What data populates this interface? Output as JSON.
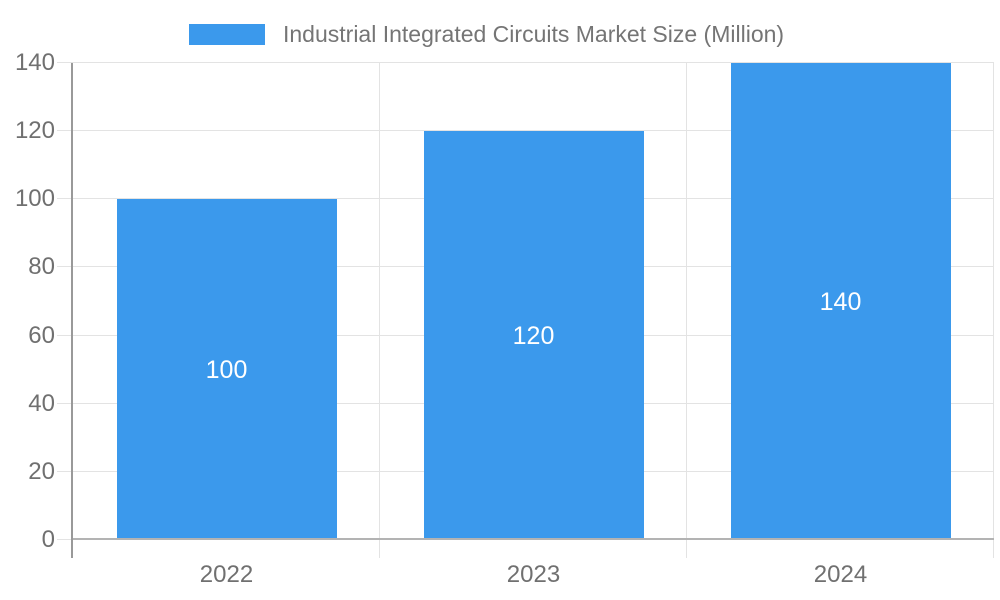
{
  "legend": {
    "label": "Industrial Integrated Circuits Market Size (Million)"
  },
  "chart_data": {
    "type": "bar",
    "title": "Industrial Integrated Circuits Market Size (Million)",
    "categories": [
      "2022",
      "2023",
      "2024"
    ],
    "series": [
      {
        "name": "Industrial Integrated Circuits Market Size (Million)",
        "values": [
          100,
          120,
          140
        ]
      }
    ],
    "data_labels": [
      "100",
      "120",
      "140"
    ],
    "xlabel": "",
    "ylabel": "",
    "ylim": [
      0,
      140
    ],
    "ytick_step": 20,
    "yticks": [
      0,
      20,
      40,
      60,
      80,
      100,
      120,
      140
    ],
    "grid": true,
    "legend_position": "top",
    "colors": {
      "bar": "#3B99EC",
      "bar_label": "#FFFFFF",
      "axis_text": "#707070",
      "legend_text": "#757575",
      "y_axis_line": "#999999",
      "x_axis_line": "#B3B3B3",
      "gridline": "#E3E3E3",
      "background": "#FFFFFF"
    }
  }
}
